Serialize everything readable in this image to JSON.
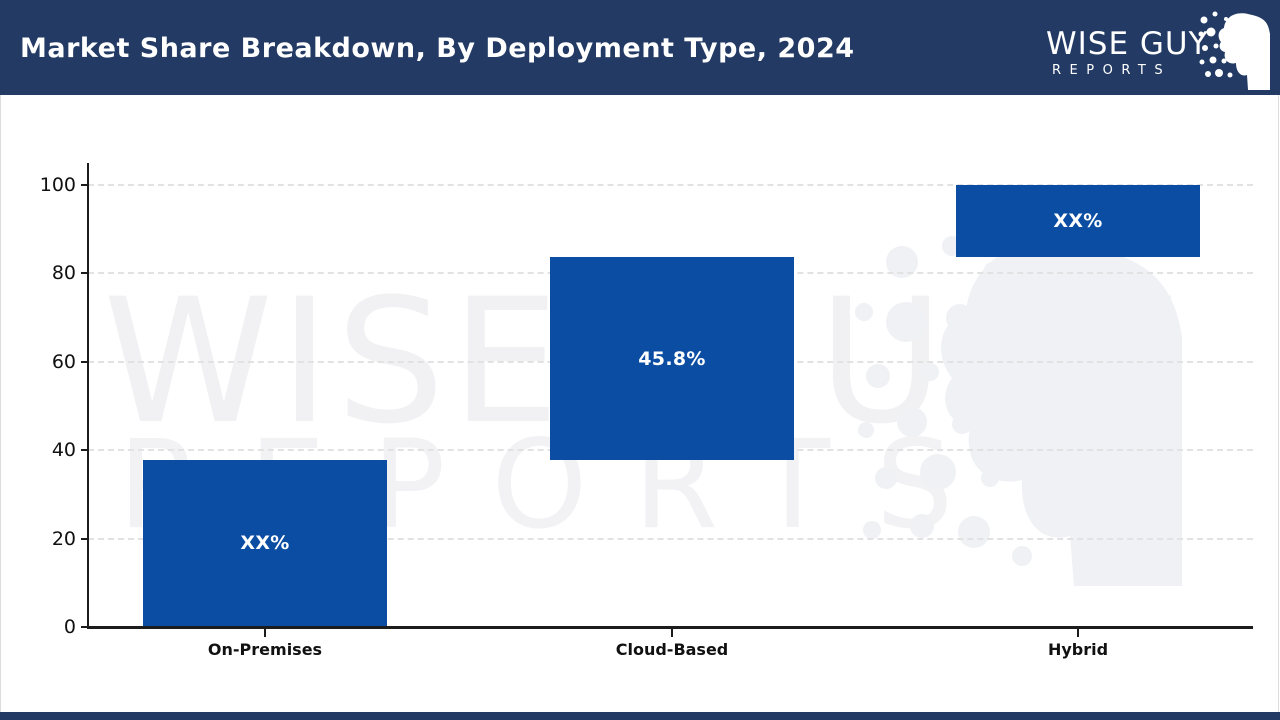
{
  "header": {
    "title": "Market Share Breakdown, By Deployment Type, 2024",
    "logo": {
      "line1": "WISE GUY",
      "line2": "REPORTS"
    }
  },
  "watermark": {
    "word1": "WISE",
    "word2": "G U Y",
    "word3": "REPORTS"
  },
  "colors": {
    "header_bg": "#223a64",
    "bar_fill": "#0b4da2",
    "bar_label": "#ffffff",
    "grid": "#e2e2e2",
    "axis": "#1c1c1c",
    "footer_bg": "#223a64"
  },
  "chart_data": {
    "type": "bar",
    "subtype": "stacked-waterfall",
    "title": "Market Share Breakdown, By Deployment Type, 2024",
    "categories": [
      "On-Premises",
      "Cloud-Based",
      "Hybrid"
    ],
    "segments": [
      {
        "category": "On-Premises",
        "label": "XX%",
        "start": 0,
        "end": 37.8
      },
      {
        "category": "Cloud-Based",
        "label": "45.8%",
        "start": 37.8,
        "end": 83.6
      },
      {
        "category": "Hybrid",
        "label": "XX%",
        "start": 83.6,
        "end": 100
      }
    ],
    "values_pct": [
      37.8,
      45.8,
      16.4
    ],
    "xlabel": "",
    "ylabel": "",
    "yticks": [
      0,
      20,
      40,
      60,
      80,
      100
    ],
    "ylim": [
      0,
      100
    ],
    "grid": "dashed-horizontal",
    "legend": "none"
  }
}
